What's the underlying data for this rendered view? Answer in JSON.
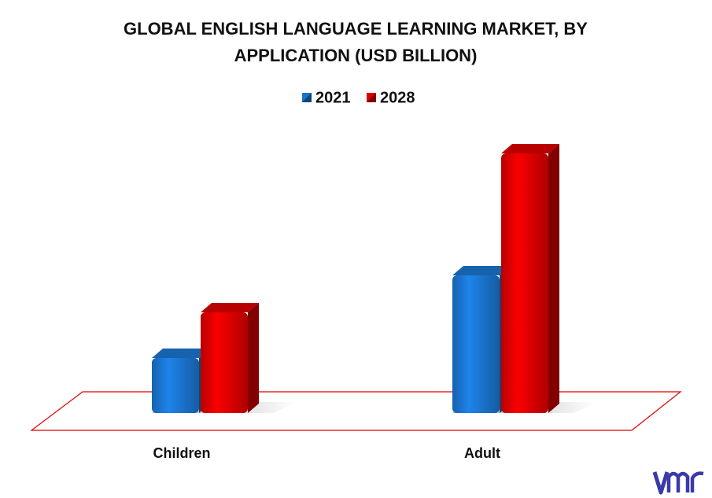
{
  "chart_data": {
    "type": "bar3d",
    "title": "GLOBAL ENGLISH LANGUAGE LEARNING MARKET, BY APPLICATION (USD BILLION)",
    "categories": [
      "Children",
      "Adult"
    ],
    "series": [
      {
        "name": "2021",
        "color": "#1a73cc",
        "values": [
          7,
          17.5
        ]
      },
      {
        "name": "2028",
        "color": "#d90000",
        "values": [
          12.8,
          33
        ]
      }
    ]
  }
}
